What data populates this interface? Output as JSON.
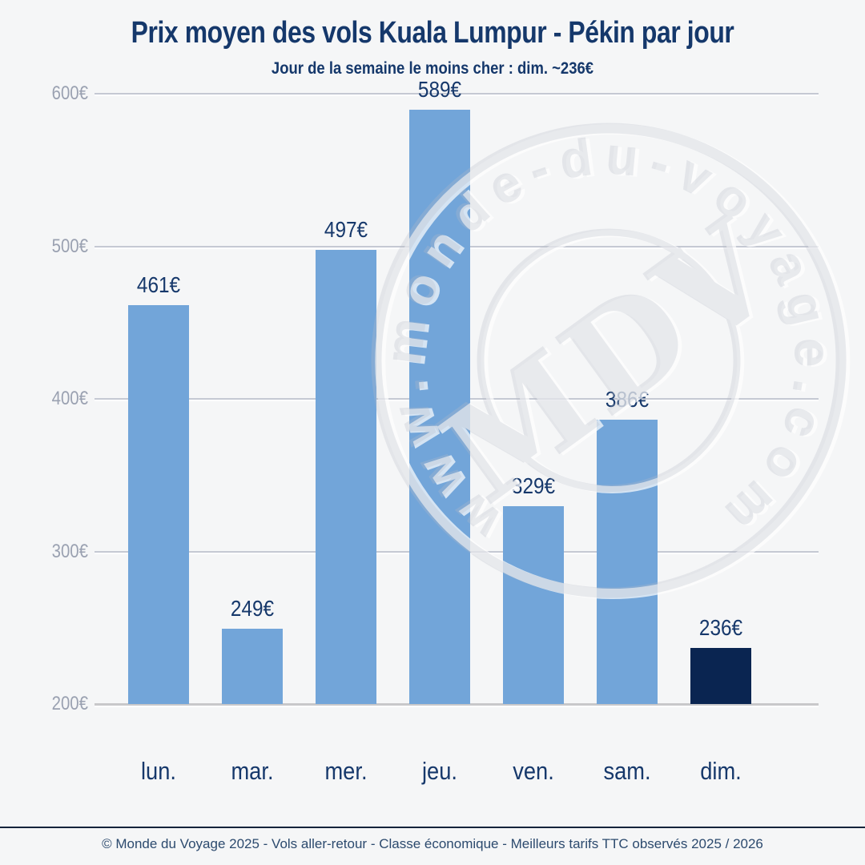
{
  "page": {
    "background": "#f5f6f7"
  },
  "header": {
    "title": "Prix moyen des vols Kuala Lumpur - Pékin par jour",
    "subtitle": "Jour de la semaine le moins cher : dim. ~236€"
  },
  "chart_data": {
    "type": "bar",
    "title": "Prix moyen des vols Kuala Lumpur - Pékin par jour",
    "subtitle": "Jour de la semaine le moins cher : dim. ~236€",
    "categories": [
      "lun.",
      "mar.",
      "mer.",
      "jeu.",
      "ven.",
      "sam.",
      "dim."
    ],
    "values": [
      461,
      249,
      497,
      589,
      329,
      386,
      236
    ],
    "value_labels": [
      "461€",
      "249€",
      "497€",
      "589€",
      "329€",
      "386€",
      "236€"
    ],
    "xlabel": "",
    "ylabel": "",
    "ylim": [
      200,
      600
    ],
    "y_ticks": [
      {
        "value": 600,
        "label": "600€"
      },
      {
        "value": 500,
        "label": "500€"
      },
      {
        "value": 400,
        "label": "400€"
      },
      {
        "value": 300,
        "label": "300€"
      },
      {
        "value": 200,
        "label": "200€"
      }
    ],
    "grid": "horizontal",
    "legend": "none",
    "bar_color": "#72a5d9",
    "highlight": {
      "category": "dim.",
      "color": "#0a2551"
    },
    "value_label_color": "#16386b",
    "day_label_color": "#16386b",
    "axis_tick_color": "#9aa1b1",
    "grid_color": "#c5c9d3",
    "baseline_color": "#c8c8ca"
  },
  "watermark": {
    "ring_text": "www.monde-du-voyage.com",
    "center_text": "MDV"
  },
  "footer": {
    "text": "© Monde du Voyage 2025 - Vols aller-retour - Classe économique - Meilleurs tarifs TTC observés 2025 / 2026",
    "line_color": "#14233b"
  }
}
